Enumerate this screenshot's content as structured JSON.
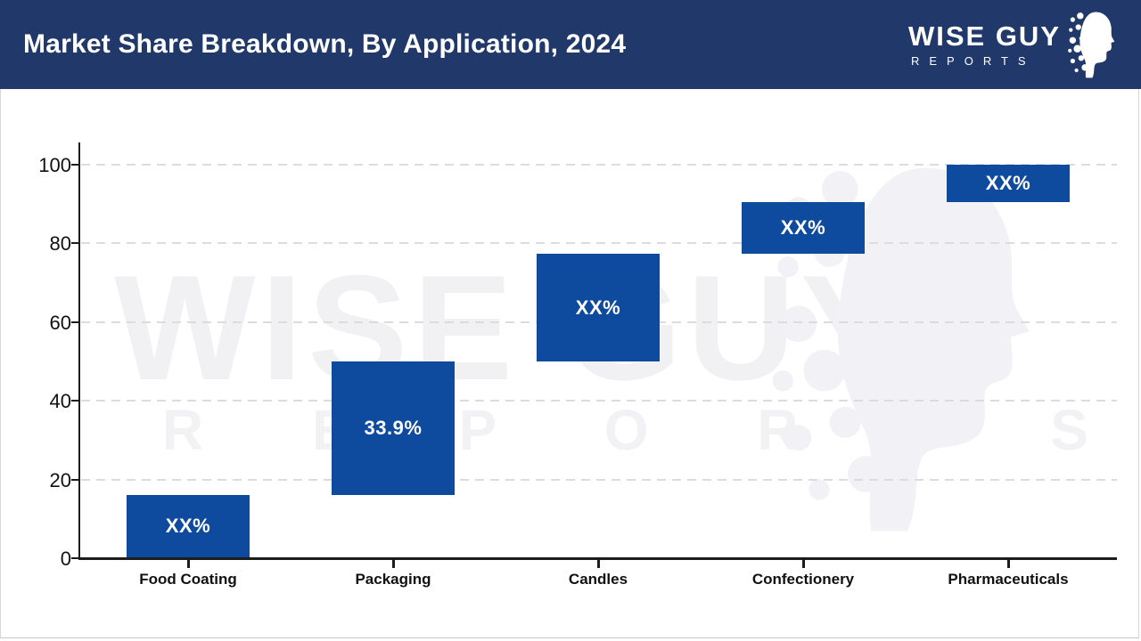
{
  "header": {
    "title": "Market Share Breakdown, By Application, 2024",
    "logo": {
      "name": "WISE GUY",
      "sub": "REPORTS"
    }
  },
  "watermark": {
    "name": "WISE GUY",
    "sub": "R E P O R T S"
  },
  "colors": {
    "header_bg": "#21386a",
    "bar": "#0e4a9e",
    "bar_label": "#ffffff",
    "axis": "#1c1c1c",
    "grid": "#dcdcdc",
    "watermark": "#f2f2f5"
  },
  "chart_data": {
    "type": "bar",
    "variant": "floating-waterfall",
    "title": "Market Share Breakdown, By Application, 2024",
    "categories": [
      "Food Coating",
      "Packaging",
      "Candles",
      "Confectionery",
      "Pharmaceuticals"
    ],
    "segments": [
      {
        "category": "Food Coating",
        "start": 0,
        "end": 16.1,
        "label": "XX%"
      },
      {
        "category": "Packaging",
        "start": 16.1,
        "end": 50.0,
        "label": "33.9%"
      },
      {
        "category": "Candles",
        "start": 50.0,
        "end": 77.3,
        "label": "XX%"
      },
      {
        "category": "Confectionery",
        "start": 77.3,
        "end": 90.5,
        "label": "XX%"
      },
      {
        "category": "Pharmaceuticals",
        "start": 90.5,
        "end": 100.0,
        "label": "XX%"
      }
    ],
    "ylim": [
      0,
      100
    ],
    "yticks": [
      0,
      20,
      40,
      60,
      80,
      100
    ],
    "xlabel": "",
    "ylabel": "",
    "grid": "horizontal-dashed",
    "legend": "none"
  }
}
